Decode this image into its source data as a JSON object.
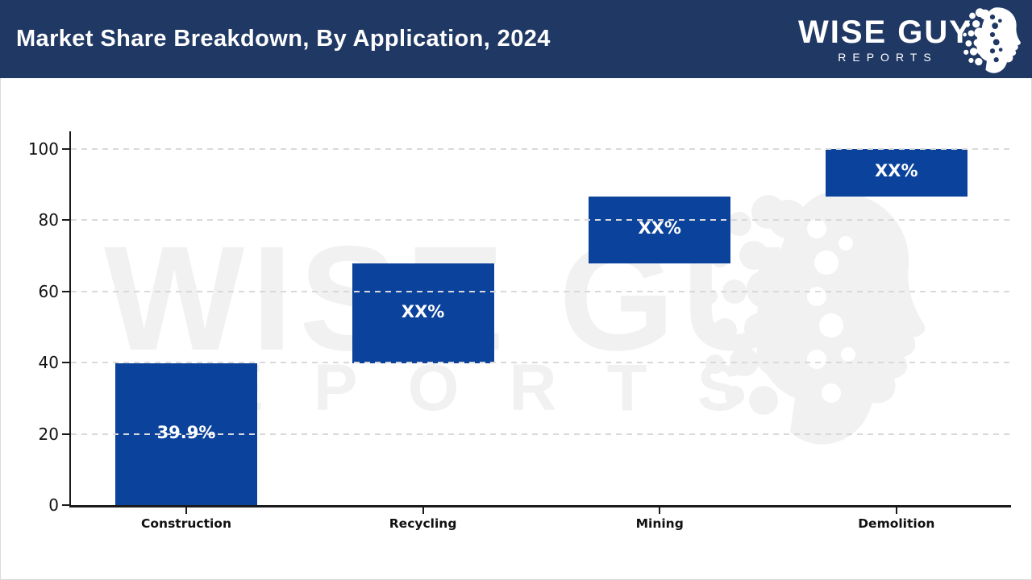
{
  "header": {
    "title": "Market Share Breakdown, By Application, 2024",
    "logo": {
      "wordmark": "WISE GUY",
      "subtext": "REPORTS",
      "face_icon": "dotted-head-profile-icon"
    }
  },
  "watermark": {
    "line1": "WISE GUY",
    "line2": "REPORTS",
    "face_icon": "dotted-head-profile-icon"
  },
  "colors": {
    "header_bg": "#1f3864",
    "bar_fill": "#0b429c",
    "bar_label_text": "#ffffff",
    "grid_line": "#d9d9d9",
    "axis_line": "#1a1a1a",
    "tick_label_text": "#111111",
    "watermark": "#f1f1f2",
    "chart_bg": "#ffffff"
  },
  "chart_data": {
    "type": "bar",
    "subtype": "waterfall-floating-bars",
    "title": "Market Share Breakdown, By Application, 2024",
    "categories": [
      "Construction",
      "Recycling",
      "Mining",
      "Demolition"
    ],
    "segments": [
      {
        "category": "Construction",
        "start": 0,
        "end": 39.9,
        "label": "39.9%"
      },
      {
        "category": "Recycling",
        "start": 39.9,
        "end": 67.9,
        "label": "XX%"
      },
      {
        "category": "Mining",
        "start": 67.9,
        "end": 86.7,
        "label": "XX%"
      },
      {
        "category": "Demolition",
        "start": 86.7,
        "end": 100,
        "label": "XX%"
      }
    ],
    "xlabel": "",
    "ylabel": "",
    "ylim": [
      0,
      105
    ],
    "yticks": [
      0,
      20,
      40,
      60,
      80,
      100
    ],
    "grid": "dashed-horizontal-over-bars",
    "legend": "none"
  }
}
